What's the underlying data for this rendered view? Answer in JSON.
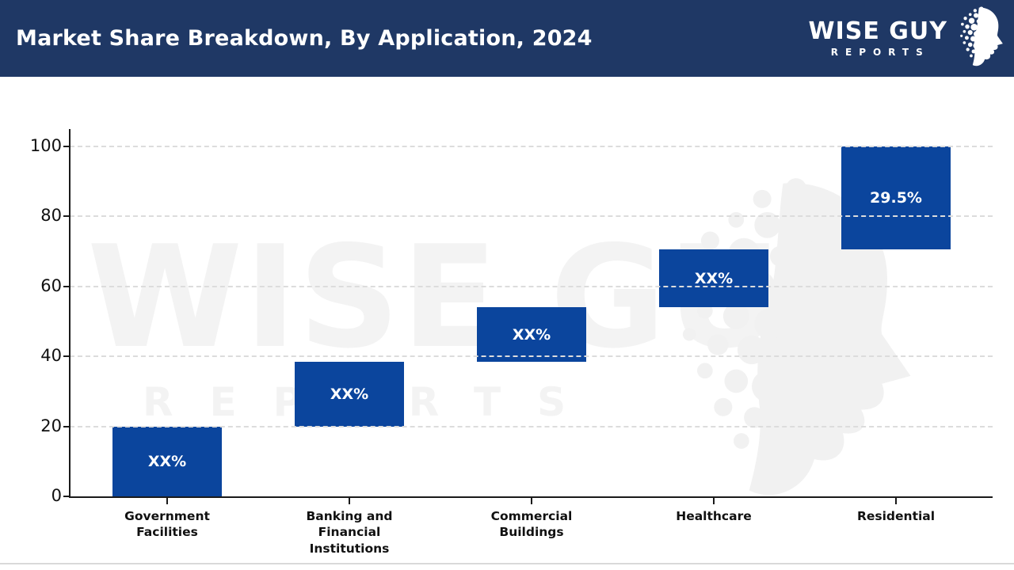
{
  "header": {
    "title": "Market Share Breakdown, By Application, 2024",
    "bg_color": "#1F3865",
    "logo": {
      "line1": "WISE GUY",
      "line2": "REPORTS"
    }
  },
  "watermark": {
    "line1": "WISE GUY",
    "line2": "REPORTS"
  },
  "chart_data": {
    "type": "bar",
    "subtype": "waterfall-floating-bars",
    "title": "Market Share Breakdown, By Application, 2024",
    "categories": [
      "Government\nFacilities",
      "Banking and\nFinancial\nInstitutions",
      "Commercial\nBuildings",
      "Healthcare",
      "Residential"
    ],
    "segments": [
      {
        "category": "Government Facilities",
        "start": 0,
        "end": 20,
        "value": 20,
        "label": "XX%"
      },
      {
        "category": "Banking and Financial Institutions",
        "start": 20,
        "end": 38.5,
        "value": 18.5,
        "label": "XX%"
      },
      {
        "category": "Commercial Buildings",
        "start": 38.5,
        "end": 54,
        "value": 15.5,
        "label": "XX%"
      },
      {
        "category": "Healthcare",
        "start": 54,
        "end": 70.5,
        "value": 16.5,
        "label": "XX%"
      },
      {
        "category": "Residential",
        "start": 70.5,
        "end": 100,
        "value": 29.5,
        "label": "29.5%"
      }
    ],
    "xlabel": "",
    "ylabel": "",
    "ylim": [
      0,
      100
    ],
    "yticks": [
      0,
      20,
      40,
      60,
      80,
      100
    ],
    "grid": "horizontal-dashed-above-bars",
    "legend": "none",
    "bar_color": "#0B459D",
    "bar_label_color": "#FFFFFF",
    "grid_color": "#DCDCDC",
    "axis_color": "#1A1A1A"
  }
}
